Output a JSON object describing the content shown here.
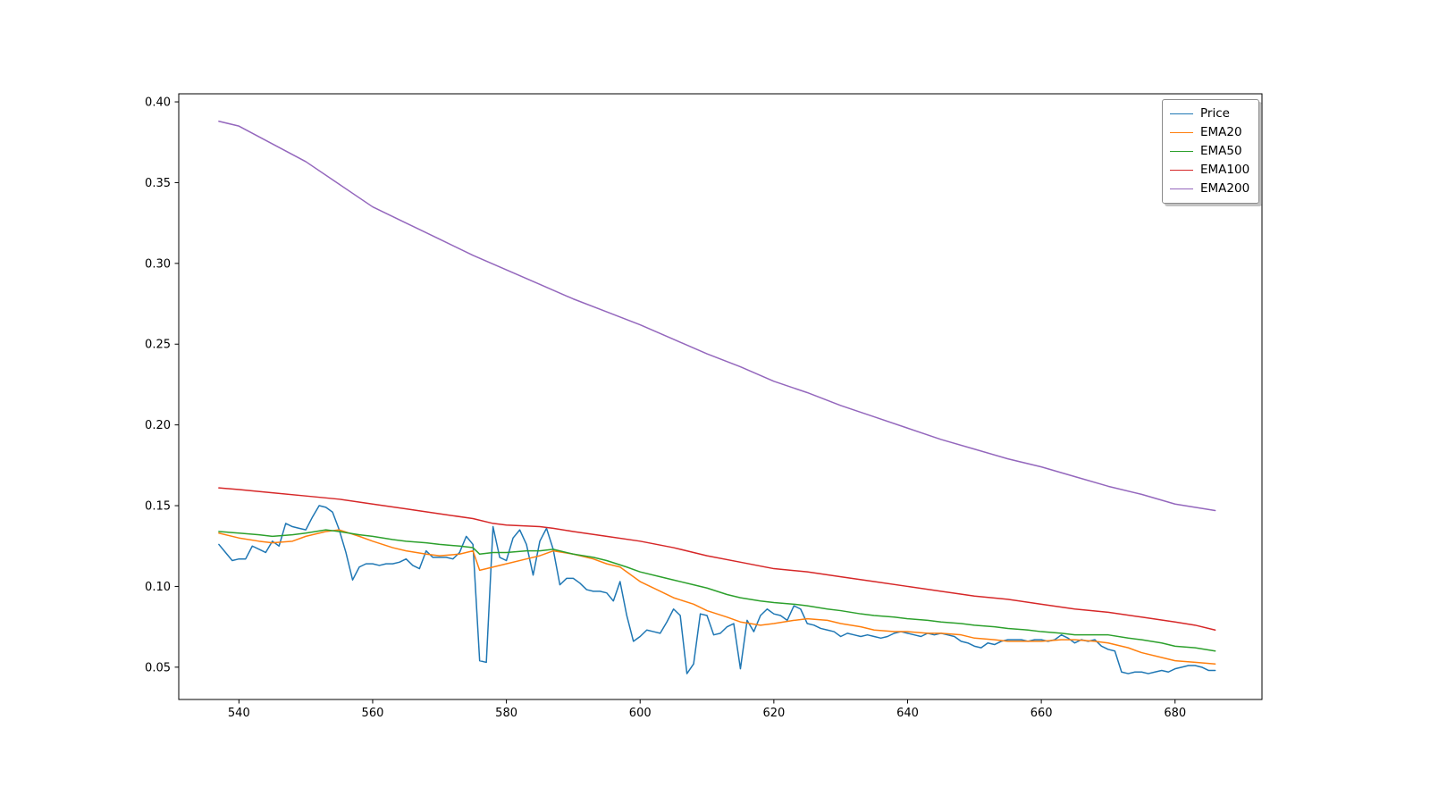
{
  "chart_data": {
    "type": "line",
    "title": "",
    "xlabel": "",
    "ylabel": "",
    "grid": false,
    "legend_position": "upper right",
    "xlim": [
      531,
      693
    ],
    "ylim": [
      0.03,
      0.405
    ],
    "xticks": [
      540,
      560,
      580,
      600,
      620,
      640,
      660,
      680
    ],
    "xtick_labels": [
      "540",
      "560",
      "580",
      "600",
      "620",
      "640",
      "660",
      "680"
    ],
    "yticks": [
      0.05,
      0.1,
      0.15,
      0.2,
      0.25,
      0.3,
      0.35,
      0.4
    ],
    "ytick_labels": [
      "0.05",
      "0.10",
      "0.15",
      "0.20",
      "0.25",
      "0.30",
      "0.35",
      "0.40"
    ],
    "series": [
      {
        "name": "Price",
        "color": "#1f77b4",
        "x": [
          537,
          538,
          539,
          540,
          541,
          542,
          543,
          544,
          545,
          546,
          547,
          548,
          549,
          550,
          551,
          552,
          553,
          554,
          555,
          556,
          557,
          558,
          559,
          560,
          561,
          562,
          563,
          564,
          565,
          566,
          567,
          568,
          569,
          570,
          571,
          572,
          573,
          574,
          575,
          576,
          577,
          578,
          579,
          580,
          581,
          582,
          583,
          584,
          585,
          586,
          587,
          588,
          589,
          590,
          591,
          592,
          593,
          594,
          595,
          596,
          597,
          598,
          599,
          600,
          601,
          602,
          603,
          604,
          605,
          606,
          607,
          608,
          609,
          610,
          611,
          612,
          613,
          614,
          615,
          616,
          617,
          618,
          619,
          620,
          621,
          622,
          623,
          624,
          625,
          626,
          627,
          628,
          629,
          630,
          631,
          632,
          633,
          634,
          635,
          636,
          637,
          638,
          639,
          640,
          641,
          642,
          643,
          644,
          645,
          646,
          647,
          648,
          649,
          650,
          651,
          652,
          653,
          654,
          655,
          656,
          657,
          658,
          659,
          660,
          661,
          662,
          663,
          664,
          665,
          666,
          667,
          668,
          669,
          670,
          671,
          672,
          673,
          674,
          675,
          676,
          677,
          678,
          679,
          680,
          681,
          682,
          683,
          684,
          685,
          686
        ],
        "y": [
          0.126,
          0.121,
          0.116,
          0.117,
          0.117,
          0.125,
          0.123,
          0.121,
          0.128,
          0.125,
          0.139,
          0.137,
          0.136,
          0.135,
          0.143,
          0.15,
          0.149,
          0.146,
          0.135,
          0.121,
          0.104,
          0.112,
          0.114,
          0.114,
          0.113,
          0.114,
          0.114,
          0.115,
          0.117,
          0.113,
          0.111,
          0.122,
          0.118,
          0.118,
          0.118,
          0.117,
          0.121,
          0.131,
          0.126,
          0.054,
          0.053,
          0.137,
          0.118,
          0.116,
          0.13,
          0.135,
          0.126,
          0.107,
          0.128,
          0.136,
          0.123,
          0.101,
          0.105,
          0.105,
          0.102,
          0.098,
          0.097,
          0.097,
          0.096,
          0.091,
          0.103,
          0.082,
          0.066,
          0.069,
          0.073,
          0.072,
          0.071,
          0.078,
          0.086,
          0.082,
          0.046,
          0.052,
          0.083,
          0.082,
          0.07,
          0.071,
          0.075,
          0.077,
          0.049,
          0.079,
          0.072,
          0.082,
          0.086,
          0.083,
          0.082,
          0.079,
          0.088,
          0.086,
          0.077,
          0.076,
          0.074,
          0.073,
          0.072,
          0.069,
          0.071,
          0.07,
          0.069,
          0.07,
          0.069,
          0.068,
          0.069,
          0.071,
          0.072,
          0.071,
          0.07,
          0.069,
          0.071,
          0.07,
          0.071,
          0.07,
          0.069,
          0.066,
          0.065,
          0.063,
          0.062,
          0.065,
          0.064,
          0.066,
          0.067,
          0.067,
          0.067,
          0.066,
          0.067,
          0.067,
          0.066,
          0.067,
          0.07,
          0.068,
          0.065,
          0.067,
          0.066,
          0.067,
          0.063,
          0.061,
          0.06,
          0.047,
          0.046,
          0.047,
          0.047,
          0.046,
          0.047,
          0.048,
          0.047,
          0.049,
          0.05,
          0.051,
          0.051,
          0.05,
          0.048,
          0.048
        ]
      },
      {
        "name": "EMA20",
        "color": "#ff7f0e",
        "x": [
          537,
          540,
          543,
          545,
          548,
          550,
          553,
          555,
          558,
          560,
          563,
          565,
          568,
          570,
          573,
          575,
          576,
          578,
          580,
          583,
          585,
          587,
          590,
          593,
          595,
          597,
          600,
          603,
          605,
          608,
          610,
          613,
          615,
          618,
          620,
          623,
          625,
          628,
          630,
          633,
          635,
          638,
          640,
          643,
          645,
          648,
          650,
          653,
          655,
          658,
          660,
          663,
          665,
          668,
          670,
          673,
          675,
          678,
          680,
          683,
          686
        ],
        "y": [
          0.133,
          0.13,
          0.128,
          0.127,
          0.128,
          0.131,
          0.134,
          0.135,
          0.131,
          0.128,
          0.124,
          0.122,
          0.12,
          0.119,
          0.12,
          0.122,
          0.11,
          0.112,
          0.114,
          0.117,
          0.119,
          0.122,
          0.12,
          0.117,
          0.114,
          0.112,
          0.103,
          0.097,
          0.093,
          0.089,
          0.085,
          0.081,
          0.078,
          0.076,
          0.077,
          0.079,
          0.08,
          0.079,
          0.077,
          0.075,
          0.073,
          0.072,
          0.072,
          0.071,
          0.071,
          0.07,
          0.068,
          0.067,
          0.066,
          0.066,
          0.066,
          0.067,
          0.067,
          0.066,
          0.065,
          0.062,
          0.059,
          0.056,
          0.054,
          0.053,
          0.052
        ]
      },
      {
        "name": "EMA50",
        "color": "#2ca02c",
        "x": [
          537,
          540,
          543,
          545,
          548,
          550,
          553,
          555,
          558,
          560,
          563,
          565,
          568,
          570,
          573,
          575,
          576,
          578,
          580,
          583,
          585,
          587,
          590,
          593,
          595,
          598,
          600,
          603,
          605,
          608,
          610,
          613,
          615,
          618,
          620,
          623,
          625,
          628,
          630,
          633,
          635,
          638,
          640,
          643,
          645,
          648,
          650,
          653,
          655,
          658,
          660,
          663,
          665,
          668,
          670,
          673,
          675,
          678,
          680,
          683,
          686
        ],
        "y": [
          0.134,
          0.133,
          0.132,
          0.131,
          0.132,
          0.133,
          0.135,
          0.134,
          0.132,
          0.131,
          0.129,
          0.128,
          0.127,
          0.126,
          0.125,
          0.124,
          0.12,
          0.121,
          0.121,
          0.122,
          0.122,
          0.123,
          0.12,
          0.118,
          0.116,
          0.112,
          0.109,
          0.106,
          0.104,
          0.101,
          0.099,
          0.095,
          0.093,
          0.091,
          0.09,
          0.089,
          0.088,
          0.086,
          0.085,
          0.083,
          0.082,
          0.081,
          0.08,
          0.079,
          0.078,
          0.077,
          0.076,
          0.075,
          0.074,
          0.073,
          0.072,
          0.071,
          0.07,
          0.07,
          0.07,
          0.068,
          0.067,
          0.065,
          0.063,
          0.062,
          0.06
        ]
      },
      {
        "name": "EMA100",
        "color": "#d62728",
        "x": [
          537,
          540,
          545,
          550,
          555,
          560,
          565,
          570,
          575,
          578,
          580,
          585,
          587,
          590,
          595,
          600,
          605,
          608,
          610,
          615,
          620,
          625,
          630,
          635,
          640,
          645,
          650,
          655,
          660,
          665,
          670,
          675,
          680,
          683,
          686
        ],
        "y": [
          0.161,
          0.16,
          0.158,
          0.156,
          0.154,
          0.151,
          0.148,
          0.145,
          0.142,
          0.139,
          0.138,
          0.137,
          0.136,
          0.134,
          0.131,
          0.128,
          0.124,
          0.121,
          0.119,
          0.115,
          0.111,
          0.109,
          0.106,
          0.103,
          0.1,
          0.097,
          0.094,
          0.092,
          0.089,
          0.086,
          0.084,
          0.081,
          0.078,
          0.076,
          0.073
        ]
      },
      {
        "name": "EMA200",
        "color": "#9467bd",
        "x": [
          537,
          540,
          545,
          550,
          555,
          560,
          565,
          570,
          575,
          580,
          585,
          590,
          595,
          600,
          605,
          610,
          615,
          620,
          625,
          630,
          635,
          640,
          645,
          650,
          655,
          660,
          665,
          670,
          675,
          680,
          686
        ],
        "y": [
          0.388,
          0.385,
          0.374,
          0.363,
          0.349,
          0.335,
          0.325,
          0.315,
          0.305,
          0.296,
          0.287,
          0.278,
          0.27,
          0.262,
          0.253,
          0.244,
          0.236,
          0.227,
          0.22,
          0.212,
          0.205,
          0.198,
          0.191,
          0.185,
          0.179,
          0.174,
          0.168,
          0.162,
          0.157,
          0.151,
          0.147
        ]
      }
    ]
  }
}
